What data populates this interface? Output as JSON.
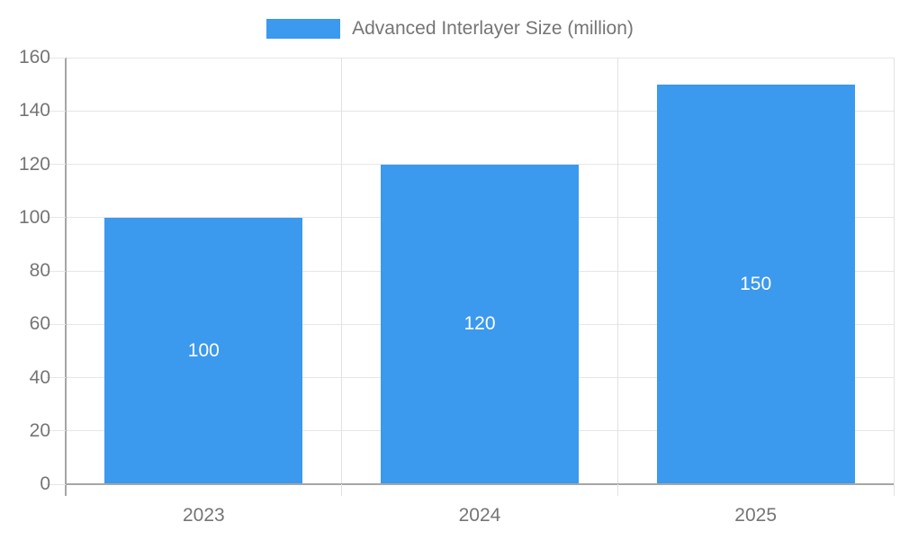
{
  "chart_data": {
    "type": "bar",
    "title": "",
    "legend": {
      "label": "Advanced Interlayer Size (million)",
      "position": "top"
    },
    "categories": [
      "2023",
      "2024",
      "2025"
    ],
    "series": [
      {
        "name": "Advanced Interlayer Size (million)",
        "values": [
          100,
          120,
          150
        ]
      }
    ],
    "value_labels": [
      "100",
      "120",
      "150"
    ],
    "xlabel": "",
    "ylabel": "",
    "ylim": [
      0,
      160
    ],
    "yticks": [
      0,
      20,
      40,
      60,
      80,
      100,
      120,
      140,
      160
    ],
    "grid": true,
    "colors": {
      "bar": "#3B99EE",
      "grid": "#E6E6E6",
      "axis": "#A6A6A6",
      "text": "#757575",
      "value_label": "#FFFFFF"
    }
  }
}
